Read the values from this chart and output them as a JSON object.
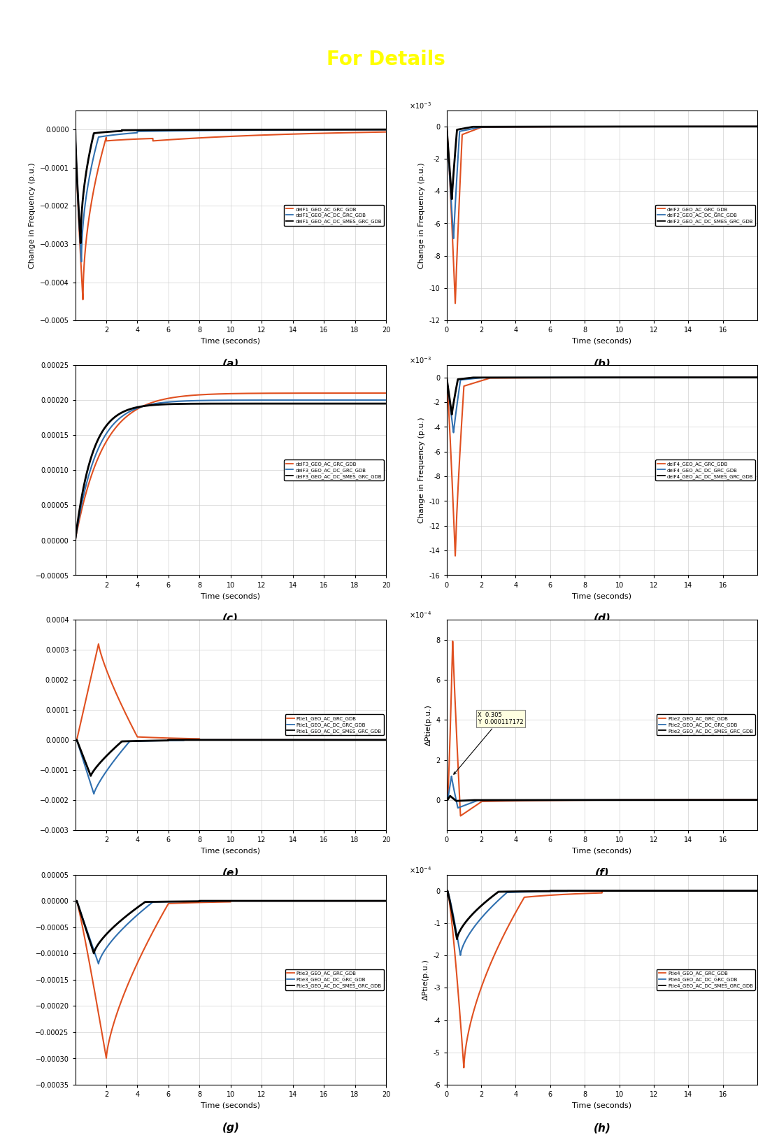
{
  "fig_width": 10.84,
  "fig_height": 15.97,
  "colors": {
    "orange": "#e05020",
    "blue": "#3070b0",
    "black": "#000000",
    "grid": "#cccccc",
    "plot_bg": "#ffffff",
    "overlay_bg": "#3c3c3c",
    "click_text": "#ffffff",
    "details_text": "#ffff00"
  },
  "subplots": [
    {
      "idx": 0,
      "label": "(a)",
      "gs_row": 0,
      "gs_col": 0,
      "xlim": [
        0,
        20
      ],
      "ylim": [
        -0.0005,
        5e-05
      ],
      "xlabel": "Time (seconds)",
      "ylabel": "Change in Frequency (p.u.)",
      "xticks": [
        2,
        4,
        6,
        8,
        10,
        12,
        14,
        16,
        18,
        20
      ],
      "legend": [
        "delF1_GEO_AC_GRC_GDB",
        "delF1_GEO_AC_DC_GRC_GDB",
        "delF1_GEO_AC_DC_SMES_GRC_GDB"
      ],
      "yexp": null
    },
    {
      "idx": 1,
      "label": "(b)",
      "gs_row": 0,
      "gs_col": 1,
      "xlim": [
        0,
        18
      ],
      "ylim": [
        -0.012,
        0.001
      ],
      "xlabel": "Time (seconds)",
      "ylabel": "Change in Frequency (p.u.)",
      "xticks": [
        0,
        2,
        4,
        6,
        8,
        10,
        12,
        14,
        16
      ],
      "legend": [
        "delF2_GEO_AC_GRC_GDB",
        "delF2_GEO_AC_DC_GRC_GDB",
        "delF2_GEO_AC_DC_SMES_GRC_GDB"
      ],
      "yexp": -3
    },
    {
      "idx": 2,
      "label": "(c)",
      "gs_row": 1,
      "gs_col": 0,
      "xlim": [
        0,
        20
      ],
      "ylim": [
        -5e-05,
        0.00025
      ],
      "xlabel": "Time (seconds)",
      "ylabel": "",
      "xticks": [
        2,
        4,
        6,
        8,
        10,
        12,
        14,
        16,
        18,
        20
      ],
      "legend": [
        "delF3_GEO_AC_GRC_GDB",
        "delF3_GEO_AC_DC_GRC_GDB",
        "delF3_GEO_AC_DC_SMES_GRC_GDB"
      ],
      "yexp": null
    },
    {
      "idx": 3,
      "label": "(d)",
      "gs_row": 1,
      "gs_col": 1,
      "xlim": [
        0,
        18
      ],
      "ylim": [
        -0.016,
        0.001
      ],
      "xlabel": "Time (seconds)",
      "ylabel": "Change in Frequency (p.u.)",
      "xticks": [
        0,
        2,
        4,
        6,
        8,
        10,
        12,
        14,
        16
      ],
      "legend": [
        "delF4_GEO_AC_GRC_GDB",
        "delF4_GEO_AC_DC_GRC_GDB",
        "delF4_GEO_AC_DC_SMES_GRC_GDB"
      ],
      "yexp": -3
    },
    {
      "idx": 4,
      "label": "(e)",
      "gs_row": 2,
      "gs_col": 0,
      "xlim": [
        0,
        20
      ],
      "ylim": [
        -0.0003,
        0.0004
      ],
      "xlabel": "Time (seconds)",
      "ylabel": "",
      "xticks": [
        2,
        4,
        6,
        8,
        10,
        12,
        14,
        16,
        18,
        20
      ],
      "legend": [
        "Ptie1_GEO_AC_GRC_GDB",
        "Ptie1_GEO_AC_DC_GRC_GDB",
        "Ptie1_GEO_AC_DC_SMES_GRC_GDB"
      ],
      "yexp": null
    },
    {
      "idx": 5,
      "label": "(f)",
      "gs_row": 2,
      "gs_col": 1,
      "xlim": [
        0,
        18
      ],
      "ylim": [
        -0.00015,
        0.0009
      ],
      "xlabel": "Time (seconds)",
      "ylabel": "ΔPtie(p.u.)",
      "xticks": [
        0,
        2,
        4,
        6,
        8,
        10,
        12,
        14,
        16
      ],
      "legend": [
        "Ptie2_GEO_AC_GRC_GDB",
        "Ptie2_GEO_AC_DC_GRC_GDB",
        "Ptie2_GEO_AC_DC_SMES_GRC_GDB"
      ],
      "yexp": -4,
      "annotation": true
    },
    {
      "idx": 6,
      "label": "(g)",
      "gs_row": 3,
      "gs_col": 0,
      "xlim": [
        0,
        20
      ],
      "ylim": [
        -0.00035,
        5e-05
      ],
      "xlabel": "Time (seconds)",
      "ylabel": "",
      "xticks": [
        2,
        4,
        6,
        8,
        10,
        12,
        14,
        16,
        18,
        20
      ],
      "legend": [
        "Ptie3_GEO_AC_GRC_GDB",
        "Ptie3_GEO_AC_DC_GRC_GDB",
        "Ptie3_GEO_AC_DC_SMES_GRC_GDB"
      ],
      "yexp": null
    },
    {
      "idx": 7,
      "label": "(h)",
      "gs_row": 3,
      "gs_col": 1,
      "xlim": [
        0,
        18
      ],
      "ylim": [
        -0.0006,
        5e-05
      ],
      "xlabel": "Time (seconds)",
      "ylabel": "ΔPtie(p.u.)",
      "xticks": [
        0,
        2,
        4,
        6,
        8,
        10,
        12,
        14,
        16
      ],
      "legend": [
        "Ptie4_GEO_AC_GRC_GDB",
        "Ptie4_GEO_AC_DC_GRC_GDB",
        "Ptie4_GEO_AC_DC_SMES_GRC_GDB"
      ],
      "yexp": -4
    }
  ]
}
